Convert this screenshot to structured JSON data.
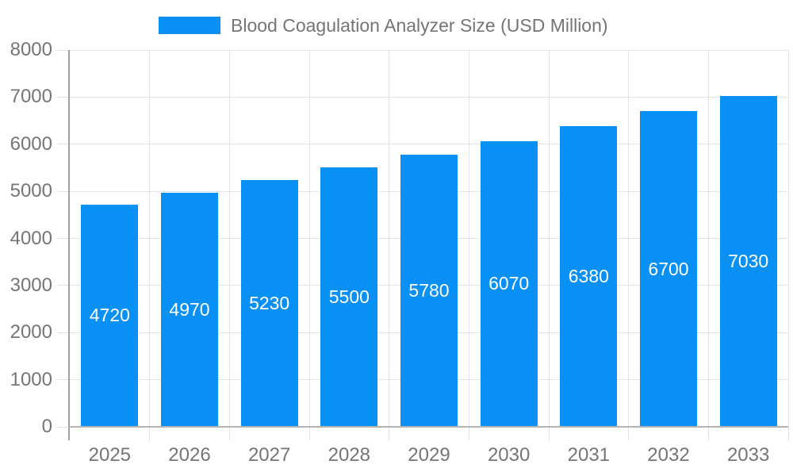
{
  "chart_data": {
    "type": "bar",
    "title": "",
    "legend": {
      "label": "Blood Coagulation Analyzer Size (USD Million)",
      "swatch_color": "#0990F5"
    },
    "legend_position": "top",
    "categories": [
      "2025",
      "2026",
      "2027",
      "2028",
      "2029",
      "2030",
      "2031",
      "2032",
      "2033"
    ],
    "values": [
      4720,
      4970,
      5230,
      5500,
      5780,
      6070,
      6380,
      6700,
      7030
    ],
    "bar_value_labels": [
      "4720",
      "4970",
      "5230",
      "5500",
      "5780",
      "6070",
      "6380",
      "6700",
      "7030"
    ],
    "xlabel": "",
    "ylabel": "",
    "ylim": [
      0,
      8000
    ],
    "yticks": [
      "0",
      "1000",
      "2000",
      "3000",
      "4000",
      "5000",
      "6000",
      "7000",
      "8000"
    ],
    "grid": true
  },
  "colors": {
    "bar": "#0990F5",
    "grid": "#e4e4e4",
    "tick": "#e2e2e2",
    "y_axis": "#a0a0a0",
    "x_axis": "#b5b5b5",
    "axis_label": "#757575",
    "bar_value_label": "#ffffff",
    "background": "#ffffff"
  }
}
